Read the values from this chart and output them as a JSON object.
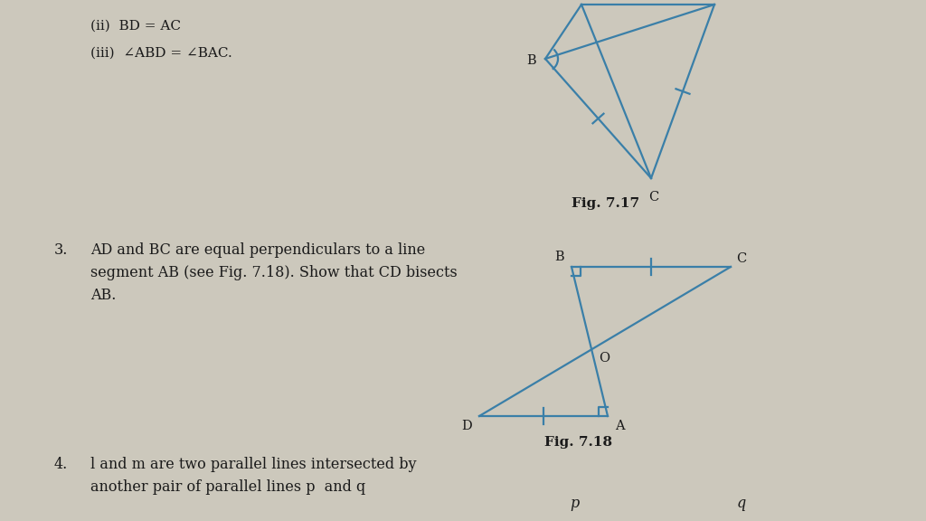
{
  "bg_color": "#ccc8bc",
  "line_color": "#3a7fa8",
  "text_color": "#1a1a1a",
  "fig717_label": "Fig. 7.17",
  "fig718_label": "Fig. 7.18",
  "text_ii": "(ii)  BD = AC",
  "text_iii": "(iii)  ∠ABD = ∠BAC.",
  "text_3_num": "3.",
  "text_3_body": "AD and BC are equal perpendiculars to a line\nsegment AB (see Fig. 7.18). Show that CD bisects\nAB.",
  "text_4_num": "4.",
  "text_4_body": "l and m are two parallel lines intersected by\nanother pair of parallel lines p  and q",
  "text_p": "p",
  "text_q": "q"
}
